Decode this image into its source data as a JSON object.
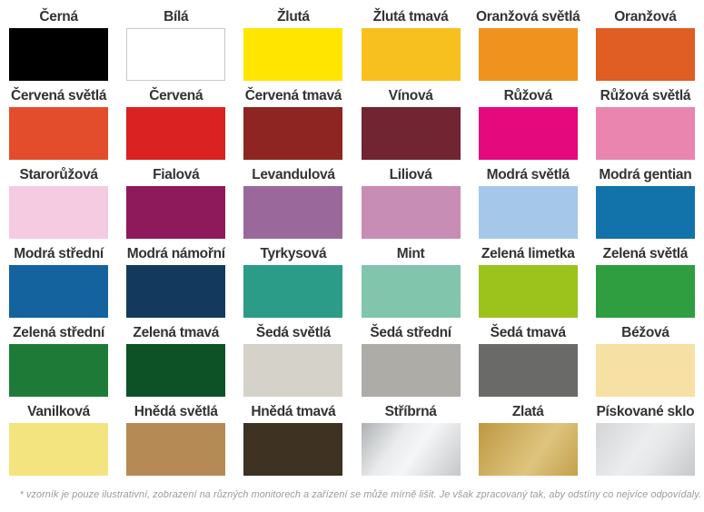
{
  "page": {
    "background": "#ffffff",
    "label_color": "#333333"
  },
  "palette": {
    "rows": 6,
    "cols": 6,
    "items": [
      {
        "label": "Černá",
        "color": "#000000"
      },
      {
        "label": "Bílá",
        "color": "#ffffff",
        "border": "#c9c9c9"
      },
      {
        "label": "Žlutá",
        "color": "#ffe500"
      },
      {
        "label": "Žlutá tmavá",
        "color": "#f7c01e"
      },
      {
        "label": "Oranžová světlá",
        "color": "#f0931e"
      },
      {
        "label": "Oranžová",
        "color": "#e05d24"
      },
      {
        "label": "Červená světlá",
        "color": "#e44d2c"
      },
      {
        "label": "Červená",
        "color": "#d92221"
      },
      {
        "label": "Červená tmavá",
        "color": "#8e2522"
      },
      {
        "label": "Vínová",
        "color": "#712432"
      },
      {
        "label": "Růžová",
        "color": "#e5097e"
      },
      {
        "label": "Růžová světlá",
        "color": "#e985af"
      },
      {
        "label": "Starorůžová",
        "color": "#f5cbe1"
      },
      {
        "label": "Fialová",
        "color": "#8e1a5b"
      },
      {
        "label": "Levandulová",
        "color": "#9a689a"
      },
      {
        "label": "Liliová",
        "color": "#c88db4"
      },
      {
        "label": "Modrá světlá",
        "color": "#a5c8ea"
      },
      {
        "label": "Modrá gentian",
        "color": "#1173a9"
      },
      {
        "label": "Modrá střední",
        "color": "#14639f"
      },
      {
        "label": "Modrá námořní",
        "color": "#133a5c"
      },
      {
        "label": "Tyrkysová",
        "color": "#2a9c88"
      },
      {
        "label": "Mint",
        "color": "#80c5ac"
      },
      {
        "label": "Zelená limetka",
        "color": "#9bc31c"
      },
      {
        "label": "Zelená světlá",
        "color": "#2f9e41"
      },
      {
        "label": "Zelená střední",
        "color": "#1e7b37"
      },
      {
        "label": "Zelená tmavá",
        "color": "#0c5226"
      },
      {
        "label": "Šedá světlá",
        "color": "#d5d2ca"
      },
      {
        "label": "Šedá střední",
        "color": "#aeaca7"
      },
      {
        "label": "Šedá tmavá",
        "color": "#6a6a69"
      },
      {
        "label": "Béžová",
        "color": "#f6e0a3"
      },
      {
        "label": "Vanilková",
        "color": "#f3e480"
      },
      {
        "label": "Hnědá světlá",
        "color": "#b68a55"
      },
      {
        "label": "Hnědá tmavá",
        "color": "#3e3223"
      },
      {
        "label": "Stříbrná",
        "gradient": "linear-gradient(125deg, #aeb1b3 0%, #e9ebec 35%, #f5f6f7 55%, #c4c7c9 100%)"
      },
      {
        "label": "Zlatá",
        "gradient": "linear-gradient(125deg, #bd9840 0%, #d7ba70 45%, #dec47e 60%, #c3a04c 100%)"
      },
      {
        "label": "Pískované sklo",
        "gradient": "linear-gradient(125deg, #d3d5d6 0%, #ebedee 45%, #e6e8e9 60%, #c6c9cb 100%)"
      }
    ]
  },
  "footer": {
    "note": "* vzorník je pouze ilustrativní, zobrazení na různých monitorech a zařízení se může mírně lišit. Je však zpracovaný tak, aby odstíny co nejvíce odpovídaly."
  }
}
